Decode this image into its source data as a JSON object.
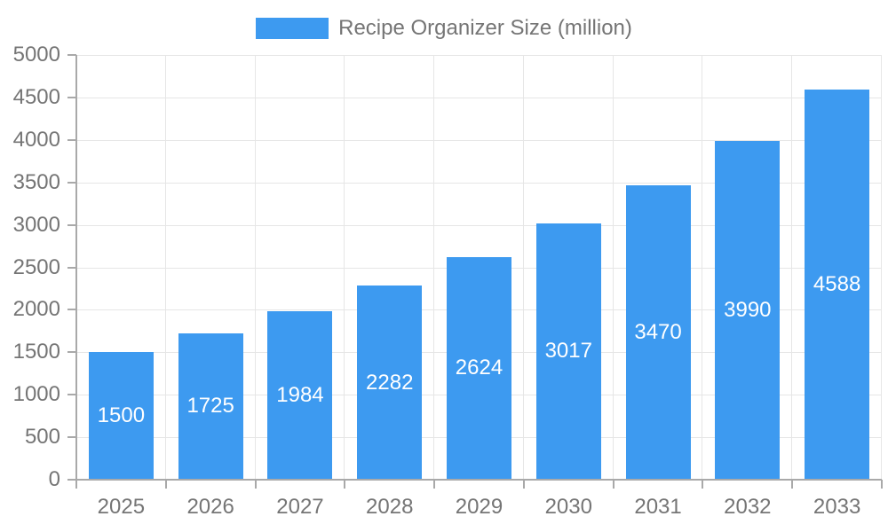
{
  "legend": {
    "label": "Recipe Organizer Size (million)"
  },
  "chart_data": {
    "type": "bar",
    "title": "Recipe Organizer Size (million)",
    "categories": [
      "2025",
      "2026",
      "2027",
      "2028",
      "2029",
      "2030",
      "2031",
      "2032",
      "2033"
    ],
    "values": [
      1500,
      1725,
      1984,
      2282,
      2624,
      3017,
      3470,
      3990,
      4588
    ],
    "xlabel": "",
    "ylabel": "",
    "ylim": [
      0,
      5000
    ],
    "ytick_step": 500,
    "yticks": [
      0,
      500,
      1000,
      1500,
      2000,
      2500,
      3000,
      3500,
      4000,
      4500,
      5000
    ],
    "grid": true,
    "legend_position": "top",
    "value_labels": "inside-center-white"
  },
  "colors": {
    "bar": "#3d9af0",
    "grid": "#e6e6e6",
    "axis": "#a9a9a9",
    "tick_text": "#757575",
    "legend_text": "#757575",
    "value_label": "#ffffff",
    "background": "#ffffff"
  }
}
